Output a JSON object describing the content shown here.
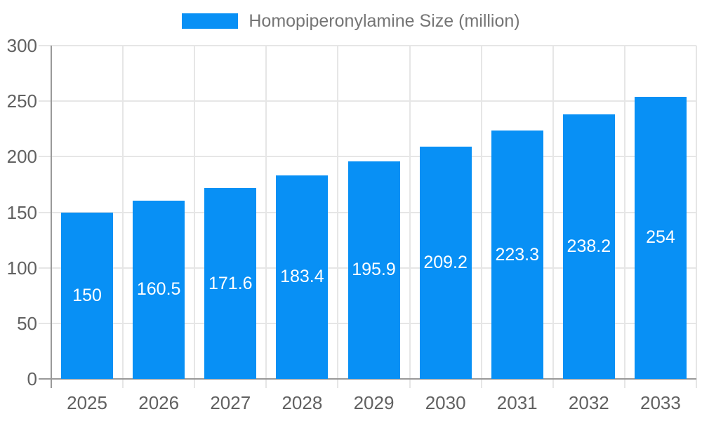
{
  "legend": {
    "label": "Homopiperonylamine Size (million)"
  },
  "chart_data": {
    "type": "bar",
    "title": "",
    "categories": [
      "2025",
      "2026",
      "2027",
      "2028",
      "2029",
      "2030",
      "2031",
      "2032",
      "2033"
    ],
    "series": [
      {
        "name": "Homopiperonylamine Size (million)",
        "values": [
          150,
          160.5,
          171.6,
          183.4,
          195.9,
          209.2,
          223.3,
          238.2,
          254
        ],
        "labels": [
          "150",
          "160.5",
          "171.6",
          "183.4",
          "195.9",
          "209.2",
          "223.3",
          "238.2",
          "254"
        ]
      }
    ],
    "xlabel": "",
    "ylabel": "",
    "ylim": [
      0,
      300
    ],
    "ytick_step": 50,
    "ytick_labels": [
      "0",
      "50",
      "100",
      "150",
      "200",
      "250",
      "300"
    ],
    "grid": true,
    "legend_position": "top",
    "bar_label_position": "center"
  },
  "colors": {
    "bar": "#0890f5",
    "axis": "#999999",
    "grid": "#e6e6e6",
    "tick_label": "#616161",
    "legend_text": "#757575",
    "bar_label": "#ffffff",
    "background": "#ffffff"
  }
}
